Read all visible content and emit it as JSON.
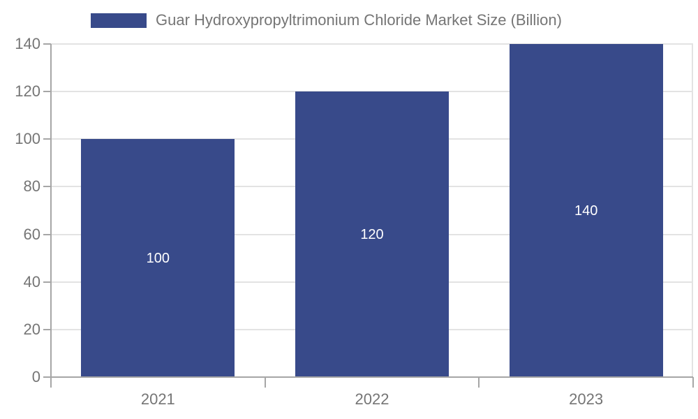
{
  "chart_data": {
    "type": "bar",
    "title": "Guar Hydroxypropyltrimonium Chloride Market Size (Billion)",
    "legend": {
      "entries": [
        "Guar Hydroxypropyltrimonium Chloride Market Size (Billion)"
      ],
      "position": "top"
    },
    "categories": [
      "2021",
      "2022",
      "2023"
    ],
    "values": [
      100,
      120,
      140
    ],
    "data_labels": [
      "100",
      "120",
      "140"
    ],
    "xlabel": "",
    "ylabel": "",
    "ylim": [
      0,
      140
    ],
    "y_ticks": [
      0,
      20,
      40,
      60,
      80,
      100,
      120,
      140
    ],
    "grid": true,
    "colors": {
      "bar": "#384a8a",
      "bar_label_text": "#ffffff",
      "axis_line": "#a6a6a6",
      "gridline": "#e3e3e3",
      "tick_text": "#757575",
      "legend_text": "#757575",
      "background": "#ffffff"
    }
  }
}
